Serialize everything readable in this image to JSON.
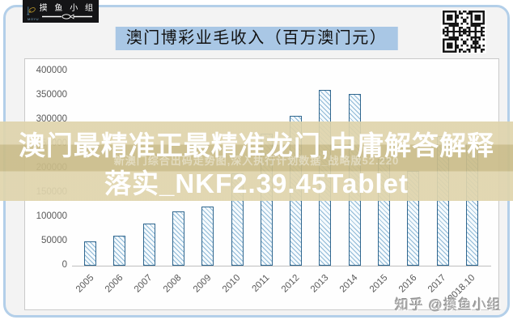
{
  "logo": {
    "brand": "摸 鱼 小 组",
    "subtext": "MOYU"
  },
  "title_bar": {
    "text": "澳门博彩业毛收入（百万澳门元）",
    "bg": "#a9c7e5"
  },
  "overlay": {
    "line1": "澳门最精准正最精准龙门,中庸解答解释",
    "line2": "落实_NKF2.39.45Tablet",
    "faint_line": "新澳门综合出码走势图,深入执行计划数据_战略版52.220",
    "band_color": "#d6ca9d"
  },
  "footer_watermark": {
    "text": "知乎 @摸鱼小组"
  },
  "chart_data": {
    "type": "bar",
    "title": "澳门博彩业毛收入（百万澳门元）",
    "categories": [
      "2005",
      "2006",
      "2007",
      "2008",
      "2009",
      "2010",
      "2011",
      "2012",
      "2013",
      "2014",
      "2015",
      "2016",
      "2017",
      "2018.10"
    ],
    "values": [
      50000,
      62000,
      86500,
      111500,
      122000,
      190000,
      271000,
      308000,
      362500,
      354000,
      220000,
      195000,
      266000,
      252000
    ],
    "xlabel": "",
    "ylabel": "",
    "ylim": [
      0,
      400000
    ],
    "ytick_step": 50000,
    "grid": false,
    "legend": false,
    "bar_fill": "diagonal-hatch",
    "bar_border_color": "#30678f",
    "hatch_color": "#8db8d6"
  },
  "colors": {
    "panel_border": "#b3cfe9",
    "frame_border": "#cacaca",
    "axis_line": "#bfbfbf",
    "tick_label": "#595959",
    "logo_bg": "#141416"
  }
}
